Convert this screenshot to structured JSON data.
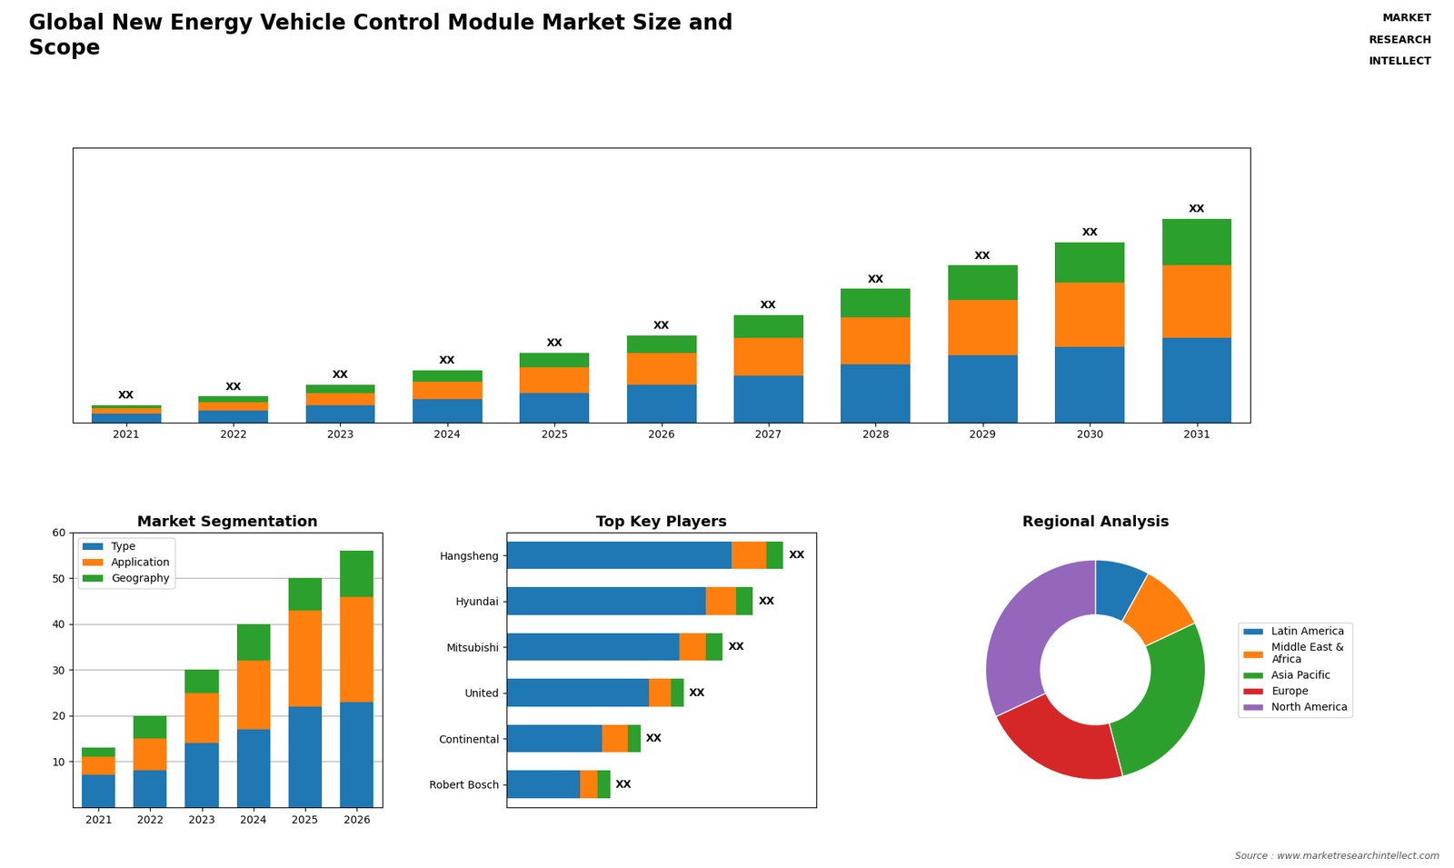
{
  "title": "Global New Energy Vehicle Control Module Market Size and\nScope",
  "annotations": [
    "Source : www.marketresearchintellect.com",
    "MARKET",
    "RESEARCH",
    "INTELLECT"
  ],
  "chart_data": [
    {
      "type": "bar",
      "stacked": true,
      "categories": [
        "2021",
        "2022",
        "2023",
        "2024",
        "2025",
        "2026",
        "2027",
        "2028",
        "2029",
        "2030",
        "2031"
      ],
      "series": [
        {
          "values": [
            3,
            4,
            6,
            8,
            10,
            13,
            16,
            20,
            23,
            26,
            29
          ]
        },
        {
          "values": [
            2,
            3,
            4,
            6,
            9,
            11,
            13,
            16,
            19,
            22,
            25
          ]
        },
        {
          "values": [
            1,
            2,
            3,
            4,
            5,
            6,
            8,
            10,
            12,
            14,
            16
          ]
        }
      ],
      "ylim": [
        0,
        94.5
      ],
      "tick_labels": "x",
      "annotations": [
        "XX",
        "XX",
        "XX",
        "XX",
        "XX",
        "XX",
        "XX",
        "XX",
        "XX",
        "XX",
        "XX"
      ]
    },
    {
      "type": "bar",
      "title": "Market Segmentation",
      "stacked": true,
      "categories": [
        "2021",
        "2022",
        "2023",
        "2024",
        "2025",
        "2026"
      ],
      "series": [
        {
          "name": "Type",
          "values": [
            7,
            8,
            14,
            17,
            22,
            23
          ]
        },
        {
          "name": "Application",
          "values": [
            4,
            7,
            11,
            15,
            21,
            23
          ]
        },
        {
          "name": "Geography",
          "values": [
            2,
            5,
            5,
            8,
            7,
            10
          ]
        }
      ],
      "ylim": [
        0,
        60
      ],
      "yticks": [
        10,
        20,
        30,
        40,
        50,
        60
      ],
      "grid": true,
      "legend": "upper left"
    },
    {
      "type": "bar",
      "title": "Top Key Players",
      "orientation": "horizontal",
      "stacked": true,
      "categories": [
        "Hangsheng",
        "Hyundai",
        "Mitsubishi",
        "United",
        "Continental",
        "Robert Bosch"
      ],
      "series": [
        {
          "values": [
            52,
            46,
            40,
            33,
            22,
            17
          ]
        },
        {
          "values": [
            8,
            7,
            6,
            5,
            6,
            4
          ]
        },
        {
          "values": [
            4,
            4,
            4,
            3,
            3,
            3
          ]
        }
      ],
      "xlim": [
        0,
        71.68
      ],
      "tick_labels": "y",
      "annotations": [
        "XX",
        "XX",
        "XX",
        "XX",
        "XX",
        "XX"
      ]
    },
    {
      "type": "donut",
      "title": "Regional Analysis",
      "categories": [
        "Latin America",
        "Middle East &\nAfrica",
        "Asia Pacific",
        "Europe",
        "North America"
      ],
      "values": [
        8,
        10,
        28,
        22,
        32
      ],
      "legend": "right"
    }
  ]
}
